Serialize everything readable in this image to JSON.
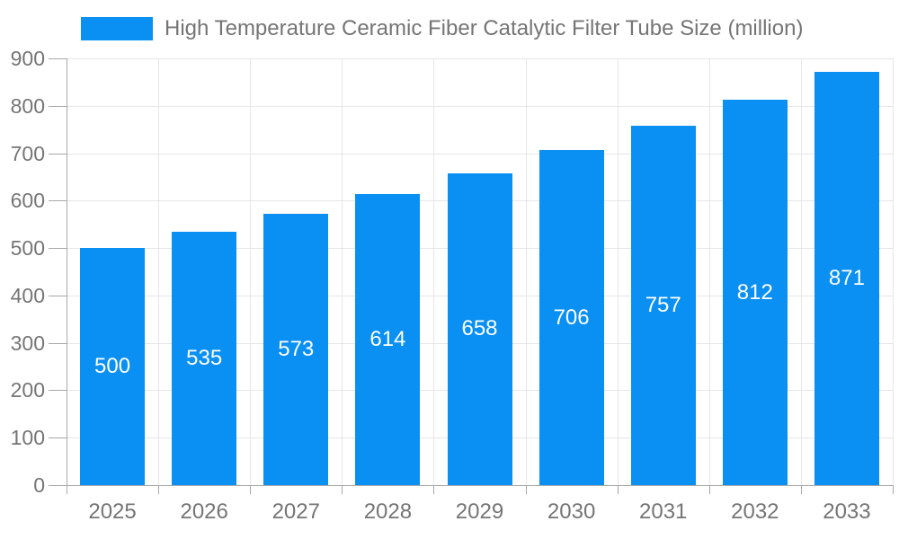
{
  "colors": {
    "bar": "#0a8ff2",
    "grid": "#e6e6e6",
    "axis": "#a8a8a8",
    "text": "#757575",
    "bar_label": "#ffffff",
    "background": "#ffffff"
  },
  "legend": {
    "label": "High Temperature Ceramic Fiber Catalytic Filter Tube Size (million)"
  },
  "chart_data": {
    "type": "bar",
    "title": "High Temperature Ceramic Fiber Catalytic Filter Tube Size (million)",
    "categories": [
      "2025",
      "2026",
      "2027",
      "2028",
      "2029",
      "2030",
      "2031",
      "2032",
      "2033"
    ],
    "values": [
      500,
      535,
      573,
      614,
      658,
      706,
      757,
      812,
      871
    ],
    "xlabel": "",
    "ylabel": "",
    "ylim": [
      0,
      900
    ],
    "ytick_step": 100,
    "yticks": [
      0,
      100,
      200,
      300,
      400,
      500,
      600,
      700,
      800,
      900
    ],
    "grid": true,
    "legend_position": "top-left",
    "value_labels": "inside-center"
  }
}
